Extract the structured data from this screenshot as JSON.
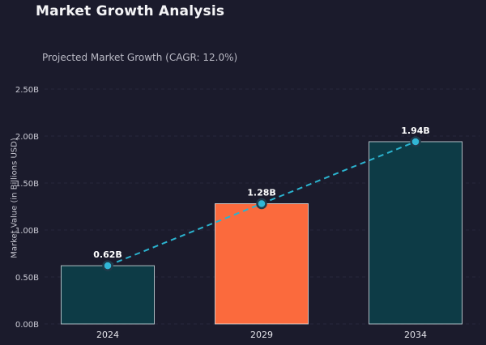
{
  "page": {
    "title": "Market Growth Analysis",
    "subtitle": "Projected Market Growth (CAGR: 12.0%)"
  },
  "chart_data": {
    "type": "bar",
    "overlay": "dashed-trend-line-with-markers",
    "title": "Market Growth Analysis",
    "subtitle": "Projected Market Growth (CAGR: 12.0%)",
    "xlabel": "",
    "ylabel": "Market Value (in Billions USD)",
    "categories": [
      "2024",
      "2029",
      "2034"
    ],
    "values": [
      0.62,
      1.28,
      1.94
    ],
    "value_labels": [
      "0.62B",
      "1.28B",
      "1.94B"
    ],
    "bar_colors": [
      "#0d3b46",
      "#fb6a3d",
      "#0d3b46"
    ],
    "highlight_index": 1,
    "ylim": [
      0,
      2.5
    ],
    "yticks": [
      0,
      0.5,
      1.0,
      1.5,
      2.0,
      2.5
    ],
    "ytick_labels": [
      "0.00B",
      "0.50B",
      "1.00B",
      "1.50B",
      "2.00B",
      "2.50B"
    ],
    "grid": "horizontal-dashed-faint",
    "legend": "none",
    "colors": {
      "background": "#1b1b2c",
      "bar_edge": "rgba(226,238,240,0.75)",
      "trend_line": "#2bb3cf",
      "marker_fill": "#31b6d6",
      "marker_edge": "#1f3a4a",
      "gridline": "#27273c",
      "title_text": "#f4f4f6",
      "subtitle_text": "#b9b9c4",
      "tick_text": "#ccccd6",
      "value_label_text": "#ffffff"
    }
  }
}
